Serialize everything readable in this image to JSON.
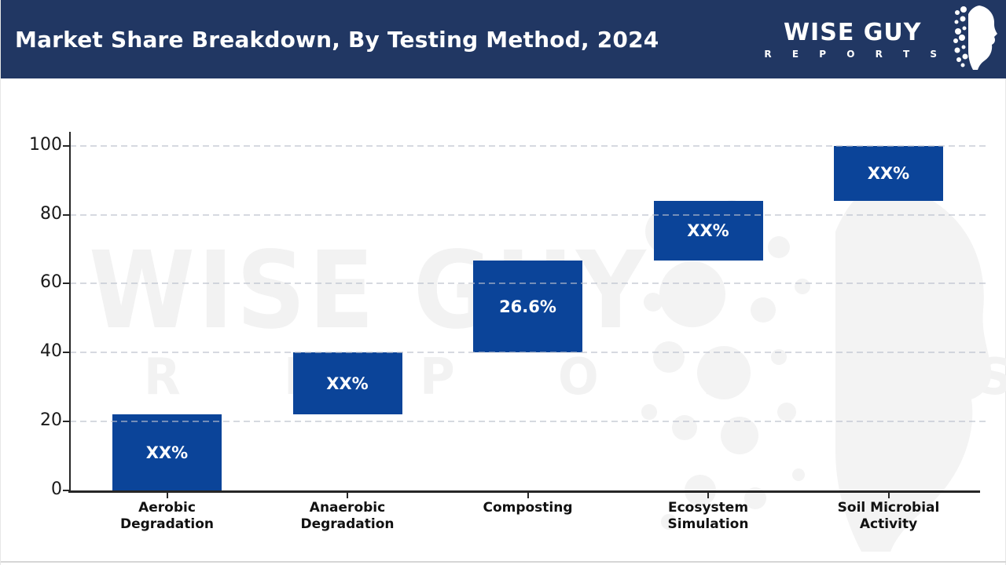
{
  "header": {
    "title": "Market Share Breakdown, By Testing Method, 2024",
    "brand": {
      "line1": "WISE GUY",
      "line2": "R E P O R T S"
    }
  },
  "watermark": {
    "line1": "WISE GUY",
    "line2": "R E P O R T S"
  },
  "colors": {
    "header_bg": "#213763",
    "bar": "#0B4499",
    "grid": "rgba(186,192,204,0.6)",
    "axis": "#262626",
    "watermark": "#f2f2f2"
  },
  "chart_data": {
    "type": "bar",
    "subtype": "waterfall",
    "title": "Market Share Breakdown, By Testing Method, 2024",
    "categories": [
      "Aerobic Degradation",
      "Anaerobic Degradation",
      "Composting",
      "Ecosystem Simulation",
      "Soil Microbial Activity"
    ],
    "category_lines": [
      [
        "Aerobic",
        "Degradation"
      ],
      [
        "Anaerobic",
        "Degradation"
      ],
      [
        "Composting"
      ],
      [
        "Ecosystem",
        "Simulation"
      ],
      [
        "Soil Microbial",
        "Activity"
      ]
    ],
    "bars": [
      {
        "category": "Aerobic Degradation",
        "start": 0,
        "end": 22,
        "label": "XX%"
      },
      {
        "category": "Anaerobic Degradation",
        "start": 22,
        "end": 40,
        "label": "XX%"
      },
      {
        "category": "Composting",
        "start": 40,
        "end": 66.6,
        "label": "26.6%"
      },
      {
        "category": "Ecosystem Simulation",
        "start": 66.6,
        "end": 84,
        "label": "XX%"
      },
      {
        "category": "Soil Microbial Activity",
        "start": 84,
        "end": 100,
        "label": "XX%"
      }
    ],
    "yticks": [
      0,
      20,
      40,
      60,
      80,
      100
    ],
    "ylim": [
      0,
      104
    ],
    "grid": "horizontal dashed",
    "legend": null,
    "xlabel": "",
    "ylabel": ""
  }
}
